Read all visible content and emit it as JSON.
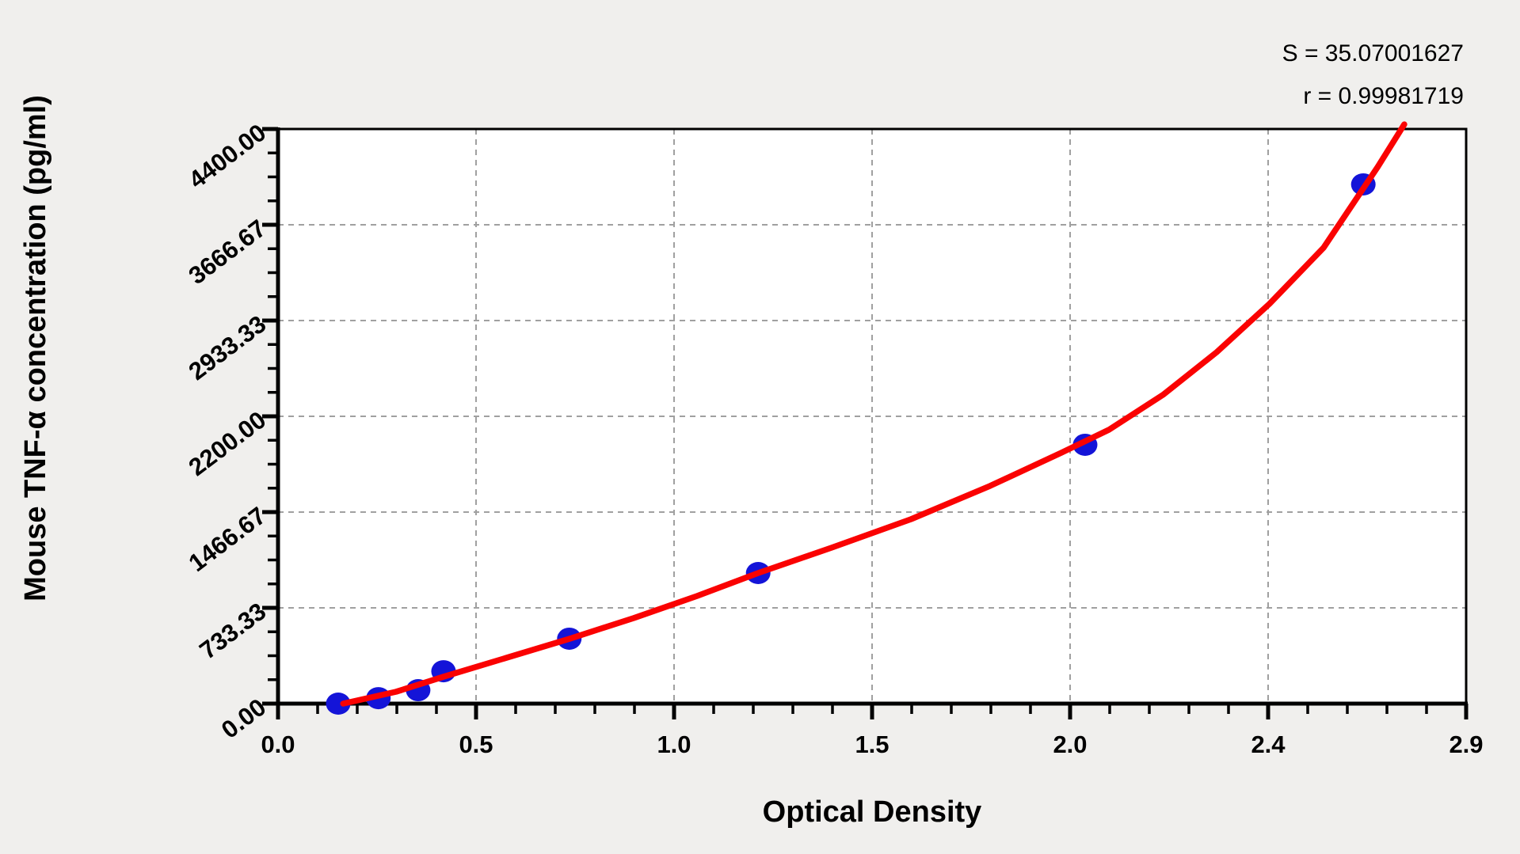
{
  "stats": {
    "s_line": "S = 35.07001627",
    "r_line": "r = 0.99981719"
  },
  "chart_data": {
    "type": "scatter",
    "title": "",
    "xlabel": "Optical Density",
    "ylabel": "Mouse TNF-α concentration (pg/ml)",
    "xlim": [
      0,
      2.9
    ],
    "ylim": [
      0,
      4400
    ],
    "x_tick_labels": [
      "0.0",
      "0.5",
      "1.0",
      "1.5",
      "2.0",
      "2.4",
      "2.9"
    ],
    "y_tick_labels": [
      "0.00",
      "733.33",
      "1466.67",
      "2200.00",
      "2933.33",
      "3666.67",
      "4400.00"
    ],
    "x_minor_divisions": 5,
    "y_minor_divisions": 4,
    "grid": "dashed gray lines at major ticks",
    "legend": "none",
    "fit_stats": {
      "S": 35.07001627,
      "r": 0.99981719
    },
    "points": [
      {
        "od": 0.147,
        "conc": 0
      },
      {
        "od": 0.245,
        "conc": 42
      },
      {
        "od": 0.342,
        "conc": 103
      },
      {
        "od": 0.404,
        "conc": 248
      },
      {
        "od": 0.711,
        "conc": 497
      },
      {
        "od": 1.172,
        "conc": 1000
      },
      {
        "od": 1.97,
        "conc": 1982
      },
      {
        "od": 2.649,
        "conc": 3976
      }
    ],
    "fit_curve": {
      "od": [
        0.159,
        0.288,
        0.404,
        0.559,
        0.712,
        0.868,
        1.023,
        1.172,
        1.351,
        1.545,
        1.738,
        1.912,
        2.028,
        2.16,
        2.291,
        2.42,
        2.552,
        2.618,
        2.684,
        2.749
      ],
      "conc": [
        0,
        91,
        206,
        352,
        497,
        655,
        824,
        1000,
        1194,
        1412,
        1667,
        1921,
        2097,
        2364,
        2691,
        3061,
        3491,
        3800,
        4109,
        4436
      ]
    },
    "colors": {
      "curve": "#fa0202",
      "points": "#1414d8",
      "grid": "#a0a0a0",
      "axis": "#000000",
      "plot_background": "#ffffff",
      "page_background": "#f0efed"
    }
  }
}
